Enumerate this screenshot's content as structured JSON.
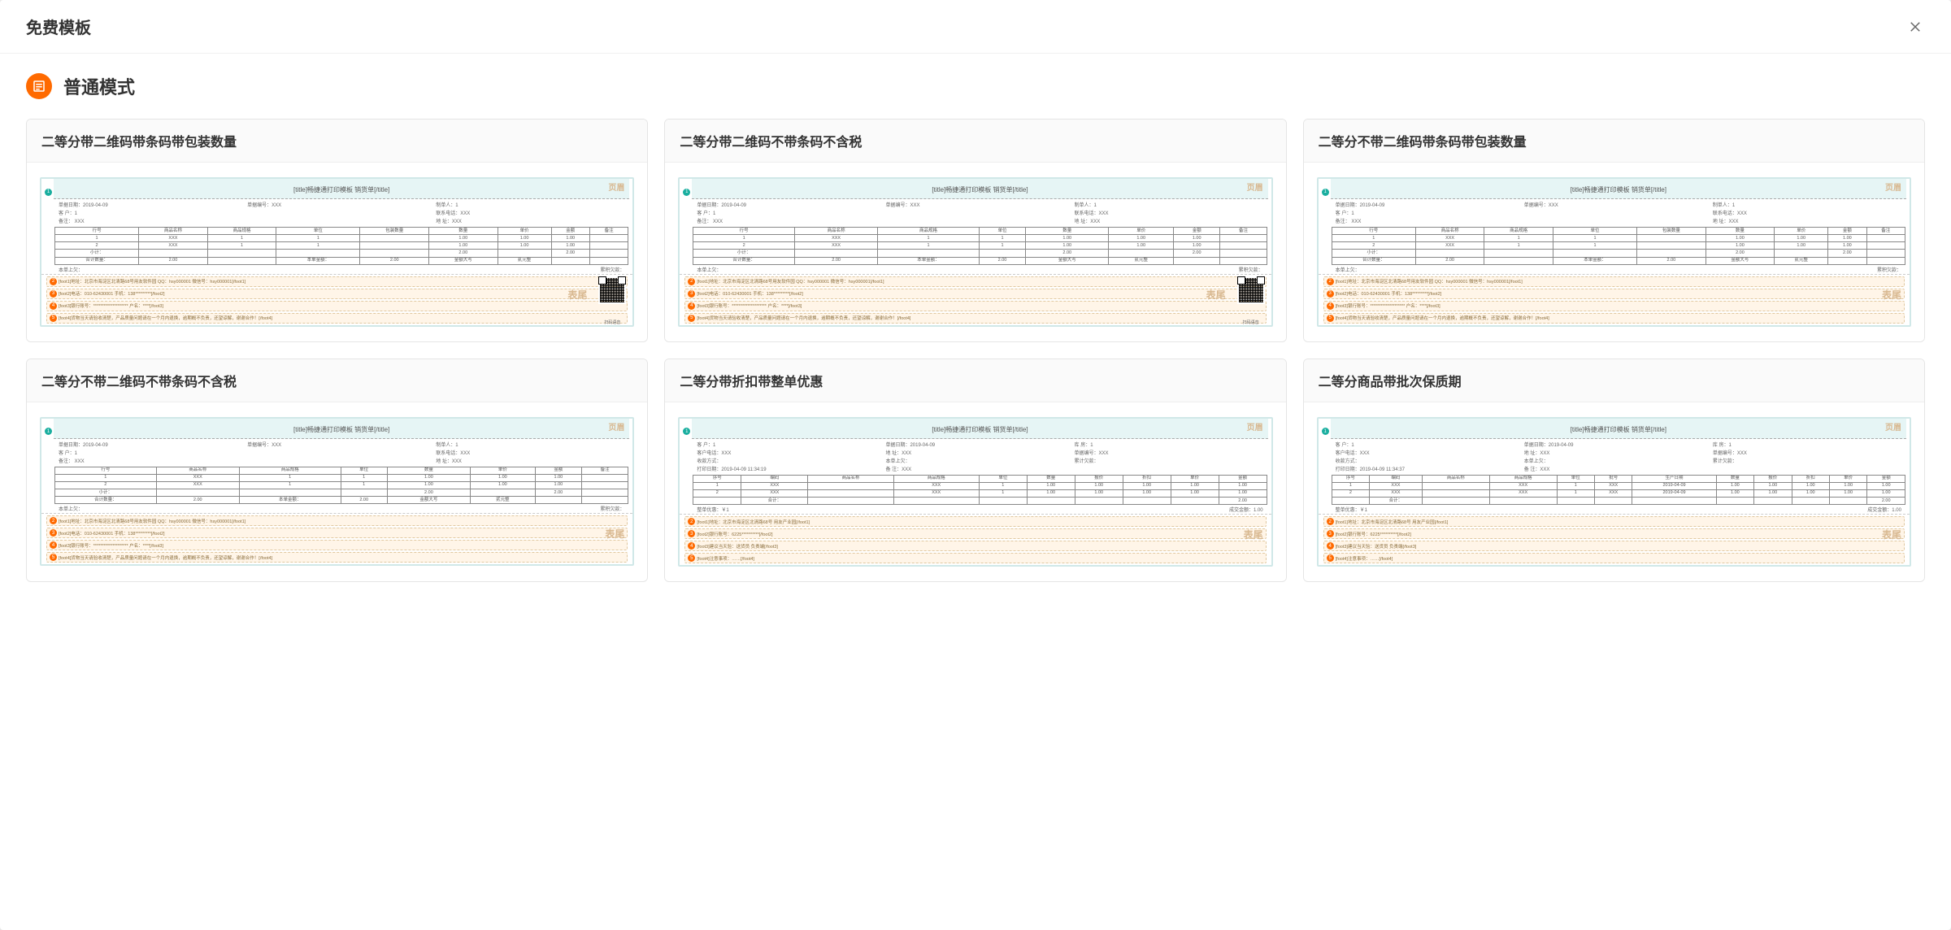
{
  "modal": {
    "title": "免费模板"
  },
  "section": {
    "title": "普通模式"
  },
  "templates": [
    {
      "id": 0,
      "title": "二等分带二维码带条码带包装数量",
      "hasQr": true,
      "variant": "packaging"
    },
    {
      "id": 1,
      "title": "二等分带二维码不带条码不含税",
      "hasQr": true,
      "variant": "noTax"
    },
    {
      "id": 2,
      "title": "二等分不带二维码带条码带包装数量",
      "hasQr": false,
      "variant": "packaging"
    },
    {
      "id": 3,
      "title": "二等分不带二维码不带条码不含税",
      "hasQr": false,
      "variant": "noTax"
    },
    {
      "id": 4,
      "title": "二等分带折扣带整单优惠",
      "hasQr": false,
      "variant": "discount"
    },
    {
      "id": 5,
      "title": "二等分商品带批次保质期",
      "hasQr": false,
      "variant": "batch"
    }
  ],
  "preview": {
    "title": "[title]畅捷通打印模板  销货单[/title]",
    "headerWatermark": "页眉",
    "footerWatermark": "表尾",
    "qrLabel": "扫码语音",
    "metaCommon": {
      "date": "单据日期：2019-04-09",
      "docNo": "单据编号：XXX",
      "maker": "制单人：1",
      "customer": "客  户：1",
      "phone": "联系电话：XXX",
      "remark": "备注：   XXX",
      "address": "地  址：XXX"
    },
    "metaDiscount": {
      "customer": "客  户：1",
      "date": "单据日期：2019-04-09",
      "warehouse": "库  房：1",
      "phoneCust": "客户电话：XXX",
      "address": "地  址：XXX",
      "docNo": "单据编号：XXX",
      "receipt": "收款方式：",
      "balance": "本单上欠：",
      "remark": "备  注：XXX",
      "accum": "累计欠款：",
      "printTime": "打印日期：2019-04-09 11:34:19",
      "printTime2": "打印日期：2019-04-09 11:34:37"
    },
    "tableCommon": {
      "headers": [
        "行号",
        "商品名称",
        "商品规格",
        "单位",
        "数量",
        "单价",
        "金额",
        "备注"
      ],
      "rows": [
        [
          "1",
          "XXX",
          "1",
          "1",
          "1.00",
          "1.00",
          "1.00",
          ""
        ],
        [
          "2",
          "XXX",
          "1",
          "1",
          "1.00",
          "1.00",
          "1.00",
          ""
        ]
      ],
      "subtotal": [
        "小计：",
        "",
        "",
        "",
        "2.00",
        "",
        "2.00",
        ""
      ],
      "total": [
        "合计数量：",
        "2.00",
        "本单金额：",
        "2.00",
        "金额大写",
        "贰元整",
        "",
        ""
      ]
    },
    "tablePackaging": {
      "headers": [
        "行号",
        "商品名称",
        "商品规格",
        "单位",
        "包装数量",
        "数量",
        "单价",
        "金额",
        "备注"
      ],
      "rows": [
        [
          "1",
          "XXX",
          "1",
          "1",
          "",
          "1.00",
          "1.00",
          "1.00",
          ""
        ],
        [
          "2",
          "XXX",
          "1",
          "1",
          "",
          "1.00",
          "1.00",
          "1.00",
          ""
        ]
      ],
      "subtotal": [
        "小计：",
        "",
        "",
        "",
        "",
        "2.00",
        "",
        "2.00",
        ""
      ],
      "total": [
        "合计数量：",
        "2.00",
        "",
        "本单金额：",
        "2.00",
        "金额大写",
        "贰元整",
        "",
        ""
      ]
    },
    "tableDiscount": {
      "headers": [
        "序号",
        "编码",
        "商品名称",
        "商品规格",
        "单位",
        "数量",
        "报价",
        "折扣",
        "单价",
        "金额"
      ],
      "rows": [
        [
          "1",
          "XXX",
          "",
          "XXX",
          "1",
          "1.00",
          "1.00",
          "1.00",
          "1.00",
          "1.00"
        ],
        [
          "2",
          "XXX",
          "",
          "XXX",
          "1",
          "1.00",
          "1.00",
          "1.00",
          "1.00",
          "1.00"
        ]
      ],
      "total": [
        "",
        "合计：",
        "",
        "",
        "",
        "",
        "",
        "",
        "",
        "2.00"
      ]
    },
    "tableBatch": {
      "headers": [
        "序号",
        "编码",
        "商品名称",
        "商品规格",
        "单位",
        "批号",
        "生产日期",
        "数量",
        "报价",
        "折扣",
        "单价",
        "金额"
      ],
      "rows": [
        [
          "1",
          "XXX",
          "",
          "XXX",
          "1",
          "XXX",
          "2019-04-09",
          "1.00",
          "1.00",
          "1.00",
          "1.00",
          "1.00"
        ],
        [
          "2",
          "XXX",
          "",
          "XXX",
          "1",
          "XXX",
          "2019-04-09",
          "1.00",
          "1.00",
          "1.00",
          "1.00",
          "1.00"
        ]
      ],
      "total": [
        "",
        "合计：",
        "",
        "",
        "",
        "",
        "",
        "",
        "",
        "",
        "",
        "2.00"
      ]
    },
    "footerRows": {
      "balance": "本单上欠：",
      "accum": "累积欠款："
    },
    "bottomLine": {
      "discount": "整单优惠：￥1",
      "amount": "成交金额：1.00",
      "discount2": "整单优惠：￥1",
      "amount2": "成交金额：1.00"
    },
    "footLines": [
      "[foot1]地址：北京市海淀区北清路68号用友软件园 QQ：hsy000001  微信号：hsy000001[/foot1]",
      "[foot2]电话：010-62430001         手机：138*********[/foot2]",
      "[foot3]银行账号：********************  户名：****[/foot3]",
      "[foot4]货物当天请验收清楚，产品质量问题请在一个月内退换，逾期概不负责，还望谅解，谢谢合作！[/foot4]"
    ],
    "footLinesShort": [
      "[foot1]地址：北京市海淀区北清路68号 用友产业园[/foot1]",
      "[foot2]银行账号：6225**********[/foot2]",
      "[foot3]建议当天验：送货员 负责端[/foot3]",
      "[foot4]注意事项：……[/foot4]"
    ]
  },
  "colors": {
    "accent": "#ff6a00",
    "teal": "#1aae9f",
    "watermark": "#d8b890",
    "previewBorder": "#d0e8e8",
    "previewHeadBg": "#e6f5f5",
    "footLineBg": "#fff5e8",
    "footLineBorder": "#e0c8a0",
    "cardBorder": "#e5e5e5",
    "cardHeaderBg": "#fafafa"
  }
}
